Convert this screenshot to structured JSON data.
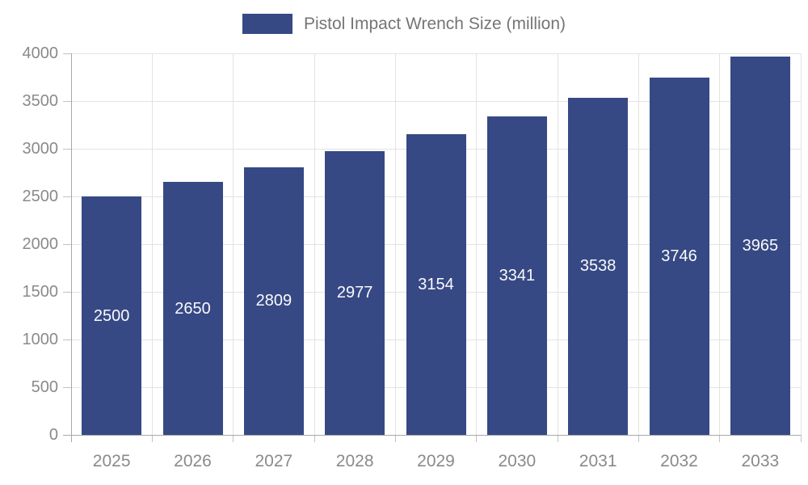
{
  "legend": {
    "label": "Pistol Impact Wrench Size (million)"
  },
  "colors": {
    "bar": "#364985",
    "grid": "#e3e3e3",
    "axis": "#a8a8a8",
    "tick_mark": "#c2c2c2",
    "axis_text": "#8a8a8a",
    "legend_text": "#757575",
    "value_text": "#fafafa",
    "background": "#ffffff"
  },
  "chart_data": {
    "type": "bar",
    "title": "Pistol Impact Wrench Size (million)",
    "categories": [
      "2025",
      "2026",
      "2027",
      "2028",
      "2029",
      "2030",
      "2031",
      "2032",
      "2033"
    ],
    "series": [
      {
        "name": "Pistol Impact Wrench Size (million)",
        "values": [
          2500,
          2650,
          2809,
          2977,
          3154,
          3341,
          3538,
          3746,
          3965
        ]
      }
    ],
    "xlabel": "",
    "ylabel": "",
    "ylim": [
      0,
      4000
    ],
    "yticks": [
      0,
      500,
      1000,
      1500,
      2000,
      2500,
      3000,
      3500,
      4000
    ],
    "grid": true,
    "legend_position": "top-center",
    "value_labels": "inside-center"
  }
}
